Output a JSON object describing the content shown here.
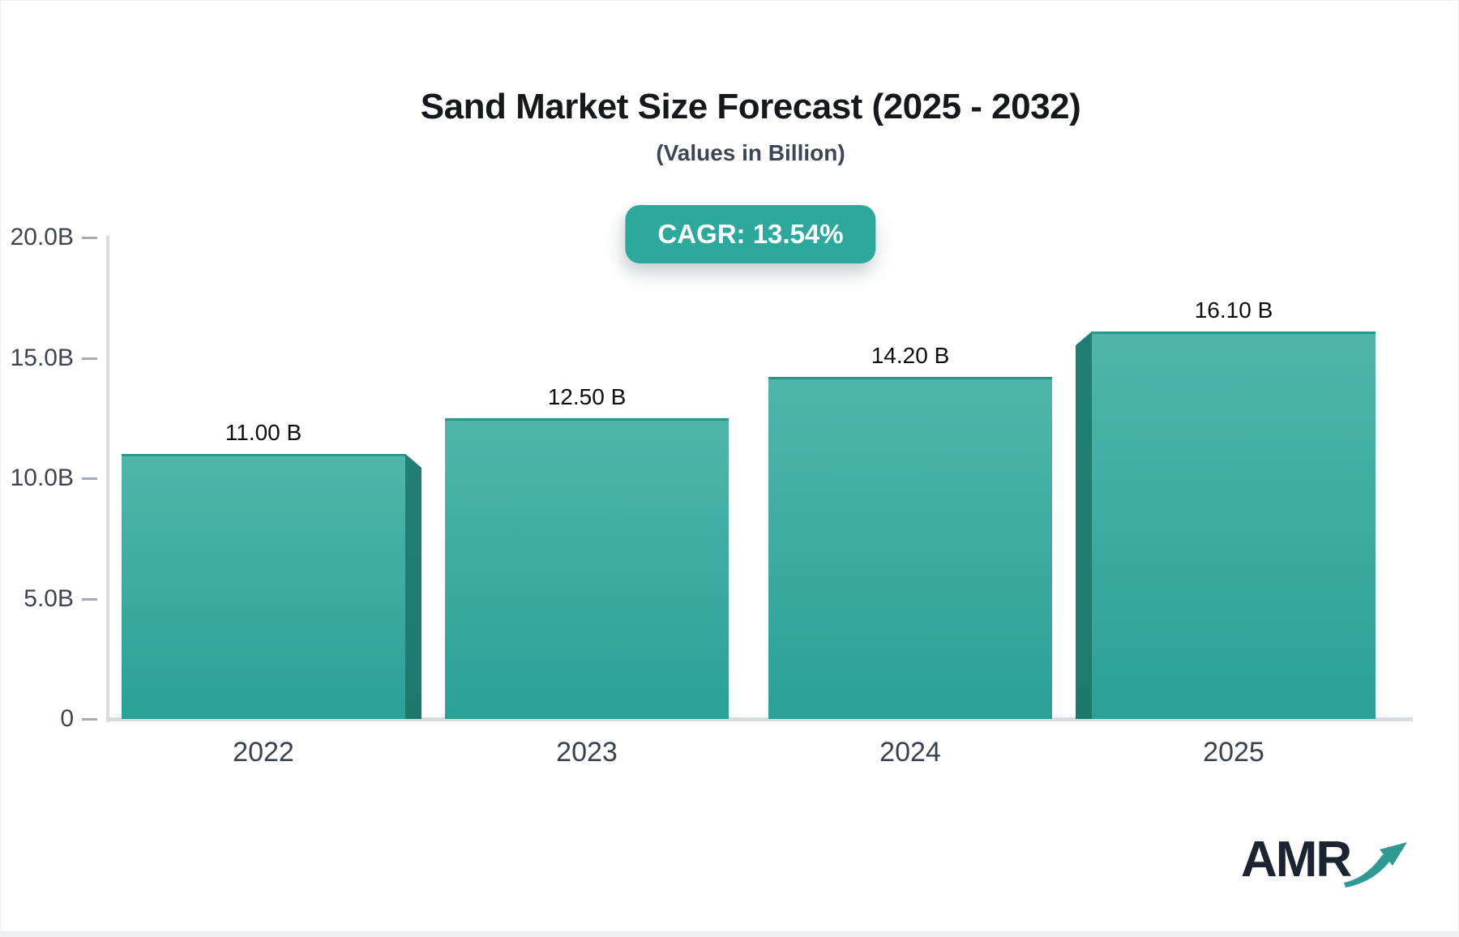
{
  "header": {
    "title": "Sand Market Size Forecast (2025 - 2032)",
    "subtitle": "(Values in Billion)",
    "cagr_label": "CAGR: 13.54%"
  },
  "footer": {
    "logo_text": "AMR",
    "logo_arrow_icon": "growth-arrow-icon"
  },
  "colors": {
    "badge_bg": "#2ca89c",
    "bar_gradient_top": "#4fb5ac",
    "bar_gradient_bottom": "#2aa197",
    "bar_top_edge": "#2e958b",
    "bar_side_dark_top": "#207f75",
    "bar_side_dark_bottom": "#1d796e",
    "axis_line": "#d8dbdf",
    "tick_dash": "#a3aab3",
    "title_color": "#15181d",
    "subtitle_color": "#3c4654",
    "value_label_color": "#0b0d0f",
    "category_label_color": "#3a424f",
    "brand_text_color": "#1a2531",
    "brand_arrow_color": "#2e9a92"
  },
  "chart_data": {
    "type": "bar",
    "title": "Sand Market Size Forecast (2025 - 2032)",
    "subtitle": "(Values in Billion)",
    "cagr_percent": "13.54%",
    "categories": [
      "2022",
      "2023",
      "2024",
      "2025"
    ],
    "values": [
      11.0,
      12.5,
      14.2,
      16.1
    ],
    "value_labels": [
      "11.00 B",
      "12.50 B",
      "14.20 B",
      "16.10 B"
    ],
    "side_panels": [
      "right",
      null,
      null,
      "left"
    ],
    "unit": "Billion",
    "xlabel": "",
    "ylabel": "",
    "ylim": [
      0,
      20
    ],
    "yticks": [
      {
        "label": "20.0B",
        "value": 20
      },
      {
        "label": "15.0B",
        "value": 15
      },
      {
        "label": "10.0B",
        "value": 10
      },
      {
        "label": "5.0B",
        "value": 5
      },
      {
        "label": "0",
        "value": 0
      }
    ],
    "grid": false,
    "legend": false
  }
}
